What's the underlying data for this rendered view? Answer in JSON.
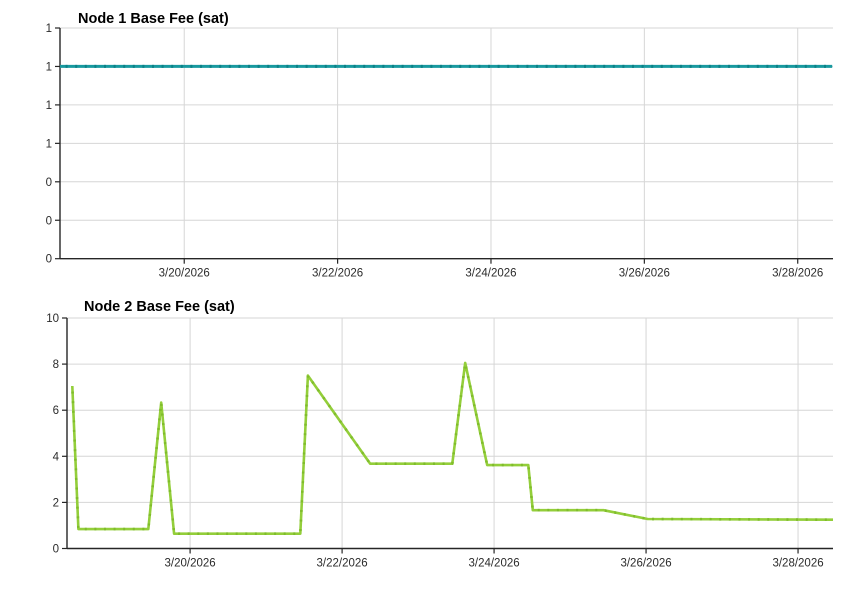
{
  "page": {
    "background": "#ffffff"
  },
  "colors": {
    "axis": "#262626",
    "grid": "#d6d6d6",
    "tick_label": "#2b2b2b",
    "title": "#000000",
    "node1_line": "#18999f",
    "node2_line": "#93ce3a"
  },
  "chart_data": [
    {
      "type": "line",
      "title": "Node 1 Base Fee (sat)",
      "xlabel": "",
      "ylabel": "",
      "x_unit": "days since 3/18/2026",
      "xlim": [
        0.38,
        10.46
      ],
      "ylim": [
        0,
        1.2
      ],
      "grid": true,
      "legend": "none",
      "x_ticks": [
        {
          "t": 2,
          "label": "3/20/2026"
        },
        {
          "t": 4,
          "label": "3/22/2026"
        },
        {
          "t": 6,
          "label": "3/24/2026"
        },
        {
          "t": 8,
          "label": "3/26/2026"
        },
        {
          "t": 10,
          "label": "3/28/2026"
        }
      ],
      "y_ticks": [
        {
          "v": 1.2,
          "label": "1"
        },
        {
          "v": 1.0,
          "label": "1"
        },
        {
          "v": 0.8,
          "label": "1"
        },
        {
          "v": 0.6,
          "label": "1"
        },
        {
          "v": 0.4,
          "label": "0"
        },
        {
          "v": 0.2,
          "label": "0"
        },
        {
          "v": 0.0,
          "label": "0"
        }
      ],
      "series": [
        {
          "name": "Node 1 Base Fee",
          "color": "#18999f",
          "marker_color": "#0c8187",
          "constant_value": 1,
          "points": [
            [
              0.38,
              1.0
            ],
            [
              10.45,
              1.0
            ]
          ]
        }
      ]
    },
    {
      "type": "line",
      "title": "Node 2 Base Fee (sat)",
      "xlabel": "",
      "ylabel": "",
      "x_unit": "days since 3/18/2026",
      "xlim": [
        0.38,
        10.46
      ],
      "ylim": [
        0,
        10
      ],
      "grid": true,
      "legend": "none",
      "x_ticks": [
        {
          "t": 2,
          "label": "3/20/2026"
        },
        {
          "t": 4,
          "label": "3/22/2026"
        },
        {
          "t": 6,
          "label": "3/24/2026"
        },
        {
          "t": 8,
          "label": "3/26/2026"
        },
        {
          "t": 10,
          "label": "3/28/2026"
        }
      ],
      "y_ticks": [
        {
          "v": 10,
          "label": "10"
        },
        {
          "v": 8,
          "label": "8"
        },
        {
          "v": 6,
          "label": "6"
        },
        {
          "v": 4,
          "label": "4"
        },
        {
          "v": 2,
          "label": "2"
        },
        {
          "v": 0,
          "label": "0"
        }
      ],
      "series": [
        {
          "name": "Node 2 Base Fee",
          "color": "#93ce3a",
          "marker_color": "#7fbc2b",
          "points": [
            [
              0.45,
              7.05
            ],
            [
              0.53,
              0.84
            ],
            [
              1.45,
              0.84
            ],
            [
              1.62,
              6.33
            ],
            [
              1.79,
              0.64
            ],
            [
              3.45,
              0.64
            ],
            [
              3.55,
              7.5
            ],
            [
              4.37,
              3.68
            ],
            [
              5.45,
              3.68
            ],
            [
              5.62,
              8.05
            ],
            [
              5.91,
              3.62
            ],
            [
              6.45,
              3.62
            ],
            [
              6.51,
              1.66
            ],
            [
              7.44,
              1.66
            ],
            [
              8.02,
              1.28
            ],
            [
              10.46,
              1.25
            ]
          ]
        }
      ]
    }
  ]
}
